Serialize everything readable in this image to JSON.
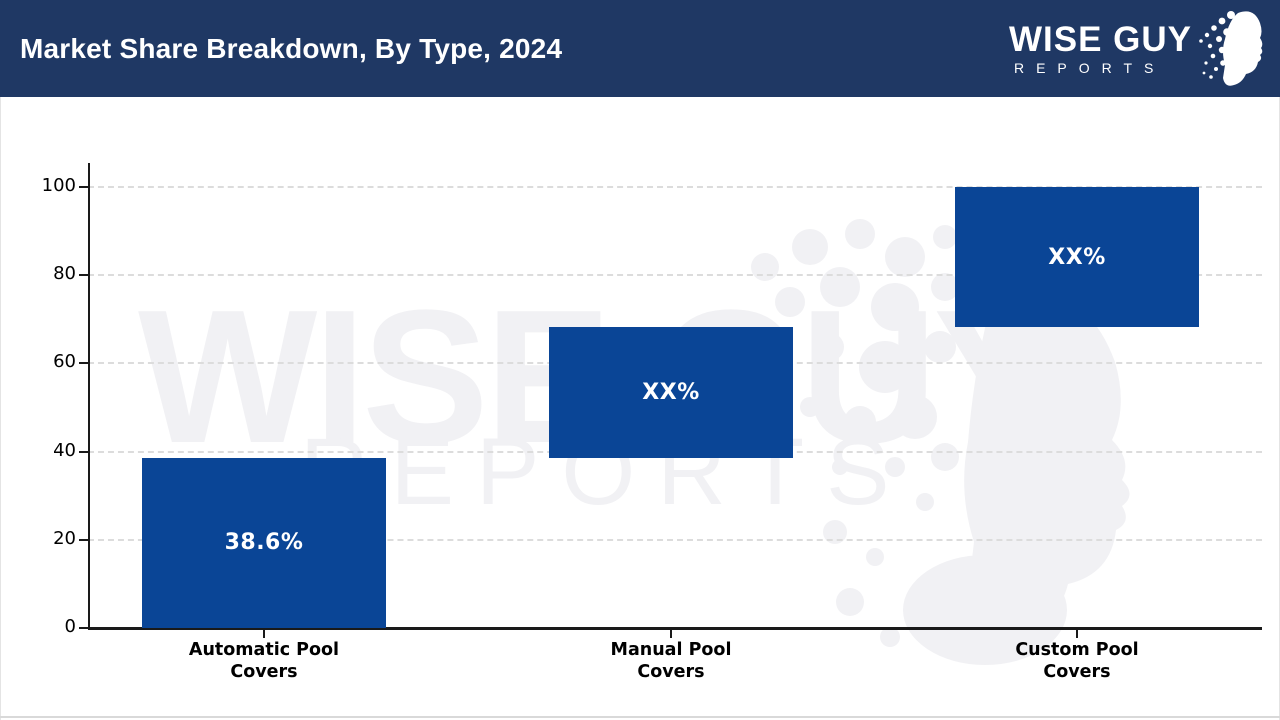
{
  "header": {
    "title": "Market Share Breakdown, By Type, 2024",
    "logo": {
      "wordmark": "WISE GUY",
      "subtitle": "REPORTS"
    }
  },
  "watermark": {
    "line1": "WISE GUY",
    "line2": "REPORTS"
  },
  "chart_data": {
    "type": "bar",
    "subtype": "stacked_waterfall_segments",
    "title": "Market Share Breakdown, By Type, 2024",
    "categories": [
      "Automatic Pool Covers",
      "Manual Pool Covers",
      "Custom Pool Covers"
    ],
    "segments": [
      {
        "category": "Automatic Pool Covers",
        "start": 0,
        "end": 38.6,
        "label": "38.6%"
      },
      {
        "category": "Manual Pool Covers",
        "start": 38.6,
        "end": 68.2,
        "label": "XX%"
      },
      {
        "category": "Custom Pool Covers",
        "start": 68.2,
        "end": 100,
        "label": "XX%"
      }
    ],
    "values": [
      38.6,
      29.6,
      31.8
    ],
    "yticks": [
      0,
      20,
      40,
      60,
      80,
      100
    ],
    "ylim": [
      0,
      105
    ],
    "xlabel": "",
    "ylabel": "",
    "grid": "dashed-horizontal",
    "legend": "none",
    "bar_color": "#0a4596",
    "value_label_color": "#ffffff",
    "header_color": "#1f3864",
    "watermark_color": "#f1f1f4"
  }
}
